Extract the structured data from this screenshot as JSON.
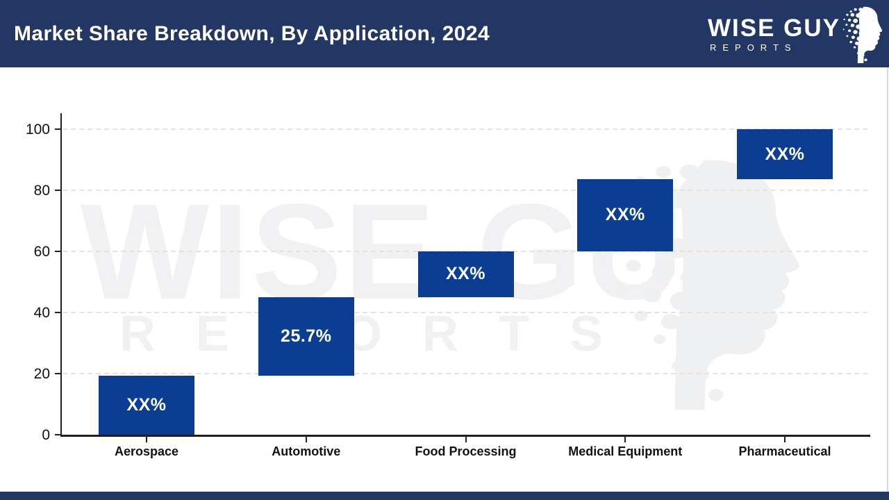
{
  "header": {
    "title": "Market Share Breakdown, By Application, 2024",
    "logo": {
      "brand_line1": "WISE GUY",
      "brand_line2": "REPORTS",
      "face_icon": "dotted-head-profile"
    }
  },
  "watermark": {
    "line1": "WISE GUY",
    "line2": "REPORTS",
    "face_icon": "dotted-head-profile"
  },
  "colors": {
    "header_bg": "#233764",
    "footer_bg": "#233764",
    "bar": "#0B3E92",
    "bar_label_text": "#FFFFFF",
    "gridline": "#E2E2E2",
    "axis": "#1F1F1F",
    "watermark": "#F1F1F3"
  },
  "chart_data": {
    "type": "bar",
    "subtype": "waterfall-floating-segments",
    "title": "Market Share Breakdown, By Application, 2024",
    "unit": "%",
    "categories": [
      "Aerospace",
      "Automotive",
      "Food Processing",
      "Medical Equipment",
      "Pharmaceutical"
    ],
    "bars": [
      {
        "category": "Aerospace",
        "start": 0,
        "end": 19.3,
        "label": "XX%"
      },
      {
        "category": "Automotive",
        "start": 19.3,
        "end": 45.0,
        "label": "25.7%"
      },
      {
        "category": "Food Processing",
        "start": 45.0,
        "end": 60.1,
        "label": "XX%"
      },
      {
        "category": "Medical Equipment",
        "start": 60.1,
        "end": 83.6,
        "label": "XX%"
      },
      {
        "category": "Pharmaceutical",
        "start": 83.6,
        "end": 100.0,
        "label": "XX%"
      }
    ],
    "yticks": [
      0,
      20,
      40,
      60,
      80,
      100
    ],
    "ylim": [
      0,
      100
    ],
    "xlabel": "",
    "ylabel": "",
    "grid": "horizontal-dashed",
    "legend": "none",
    "bar_color": "#0B3E92"
  }
}
